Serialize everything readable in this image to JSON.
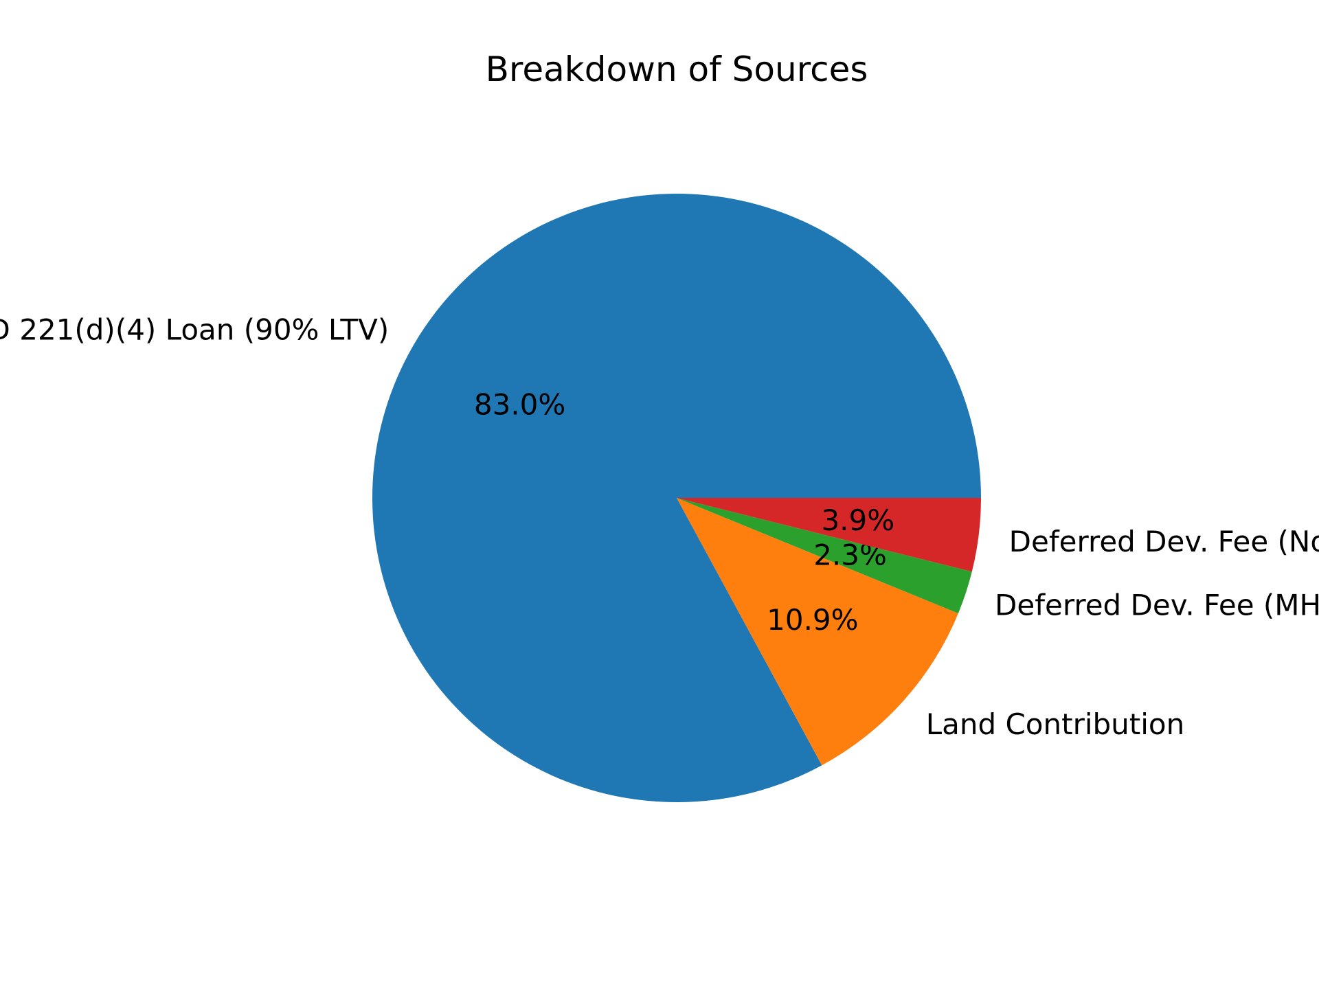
{
  "figure": {
    "background": "#ffffff"
  },
  "chart_data": {
    "type": "pie",
    "title": "Breakdown of Sources",
    "start_angle_deg": 0,
    "direction": "counterclockwise",
    "legend": "none",
    "grid": "off",
    "pct_distance": 0.6,
    "label_distance": 1.1,
    "labels_clipped_at_image_edge": true,
    "slices": [
      {
        "label": "D 221(d)(4) Loan (90% LTV)",
        "value": 83.0,
        "pct_label": "83.0%",
        "color": "#1f77b4"
      },
      {
        "label": "Land Contribution",
        "value": 10.9,
        "pct_label": "10.9%",
        "color": "#ff7f0e"
      },
      {
        "label": "Deferred Dev. Fee (MH",
        "value": 2.3,
        "pct_label": "2.3%",
        "color": "#2ca02c"
      },
      {
        "label": "Deferred Dev. Fee (No",
        "value": 3.9,
        "pct_label": "3.9%",
        "color": "#d62728"
      }
    ]
  }
}
